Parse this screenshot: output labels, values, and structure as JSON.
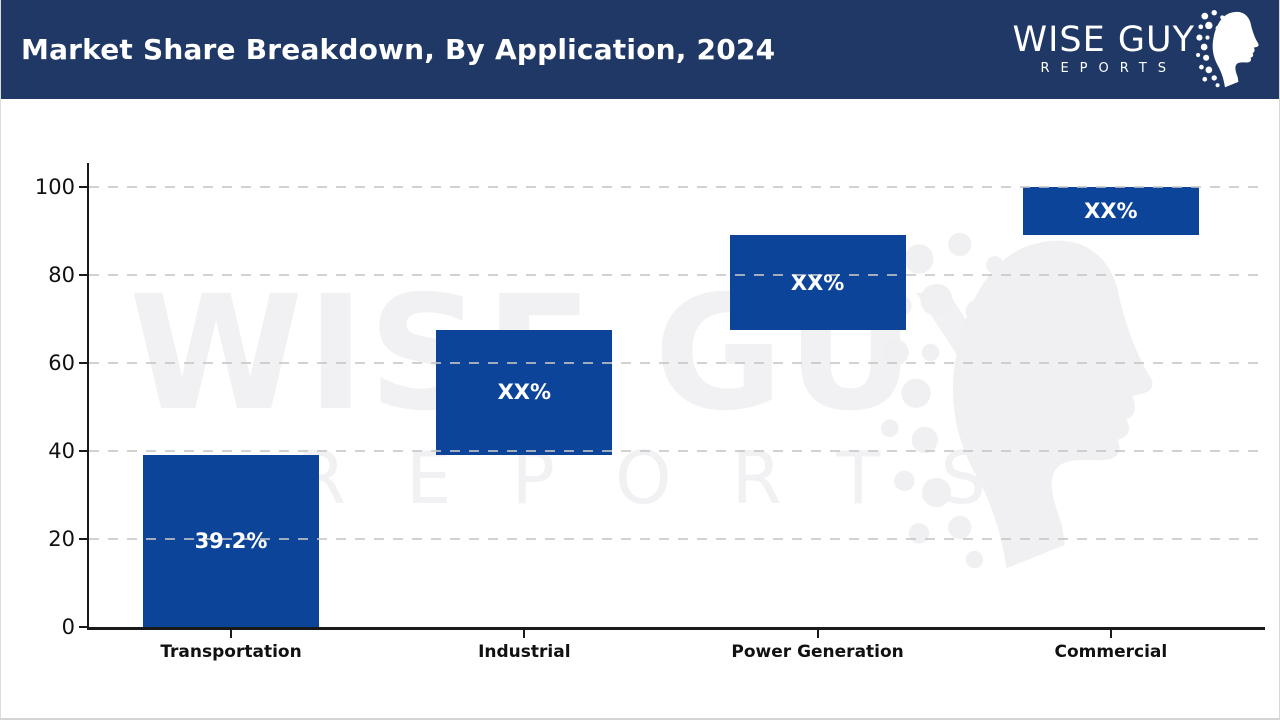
{
  "header": {
    "title": "Market Share Breakdown, By Application, 2024",
    "logo": {
      "line1": "WISE GUY",
      "line2": "REPORTS"
    },
    "bg_color": "#1f3865"
  },
  "watermark": {
    "line1": "WISE GUY",
    "line2": "REPORTS"
  },
  "chart_data": {
    "type": "bar",
    "subtype": "waterfall-floating-bars",
    "title": "Market Share Breakdown, By Application, 2024",
    "categories": [
      "Transportation",
      "Industrial",
      "Power Generation",
      "Commercial"
    ],
    "series": [
      {
        "name": "Market Share",
        "segments": [
          [
            0,
            39.2
          ],
          [
            39.2,
            67.5
          ],
          [
            67.5,
            89
          ],
          [
            89,
            100
          ]
        ]
      }
    ],
    "bar_labels": [
      "39.2%",
      "XX%",
      "XX%",
      "XX%"
    ],
    "xlabel": "",
    "ylabel": "",
    "ylim": [
      0,
      100
    ],
    "yticks": [
      0,
      20,
      40,
      60,
      80,
      100
    ],
    "grid": "horizontal-dashed-above-bars",
    "legend": "none",
    "colors": {
      "bar": "#0c4499",
      "bar_label": "#ffffff",
      "header_bg": "#1f3865",
      "grid_line": "#d9d9d9",
      "axis": "#1a1a1a",
      "tick_label": "#111111",
      "watermark": "#f1f1f4"
    }
  }
}
